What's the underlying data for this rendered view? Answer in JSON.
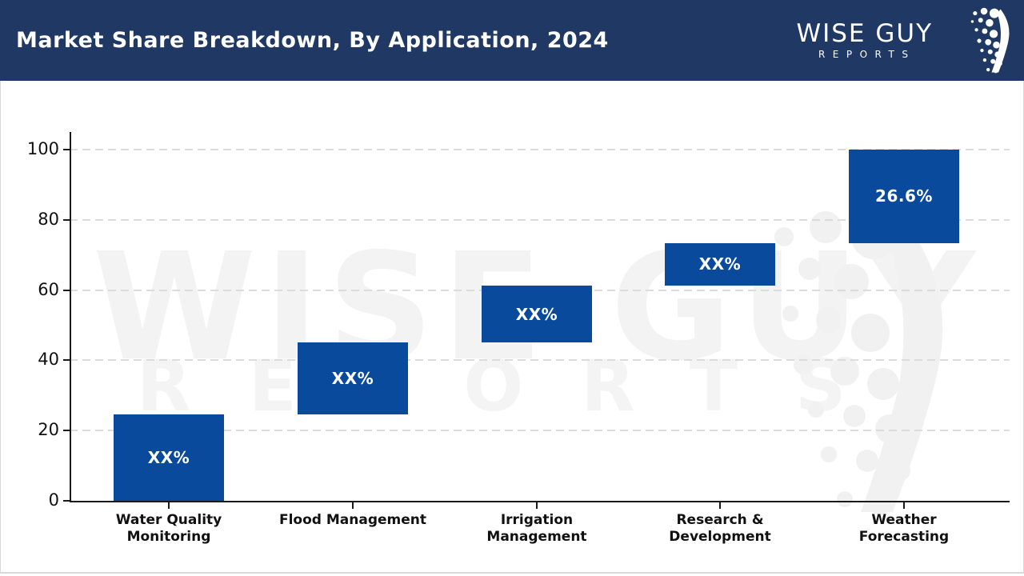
{
  "header": {
    "title": "Market Share Breakdown, By Application, 2024",
    "brand": {
      "line1": "WISE GUY",
      "line2": "REPORTS"
    }
  },
  "watermark": {
    "line1": "WISE GUY",
    "line2": "REPORTS"
  },
  "chart_data": {
    "type": "bar",
    "subtype": "waterfall",
    "title": "Market Share Breakdown, By Application, 2024",
    "categories": [
      [
        "Water Quality",
        "Monitoring"
      ],
      [
        "Flood Management"
      ],
      [
        "Irrigation",
        "Management"
      ],
      [
        "Research &",
        "Development"
      ],
      [
        "Weather",
        "Forecasting"
      ]
    ],
    "segments": [
      {
        "start": 0,
        "end": 24.5,
        "label": "XX%"
      },
      {
        "start": 24.5,
        "end": 45.0,
        "label": "XX%"
      },
      {
        "start": 45.0,
        "end": 61.3,
        "label": "XX%"
      },
      {
        "start": 61.3,
        "end": 73.4,
        "label": "XX%"
      },
      {
        "start": 73.4,
        "end": 100.0,
        "label": "26.6%"
      }
    ],
    "ylim": [
      0,
      100
    ],
    "yticks": [
      0,
      20,
      40,
      60,
      80,
      100
    ],
    "xlabel": "",
    "ylabel": "",
    "grid": "horizontal-dashed",
    "legend": "none",
    "bar_color": "#0a4a9c",
    "bar_label_color": "#ffffff",
    "header_color": "#1f3864",
    "watermark_color": "#f3f3f3"
  }
}
